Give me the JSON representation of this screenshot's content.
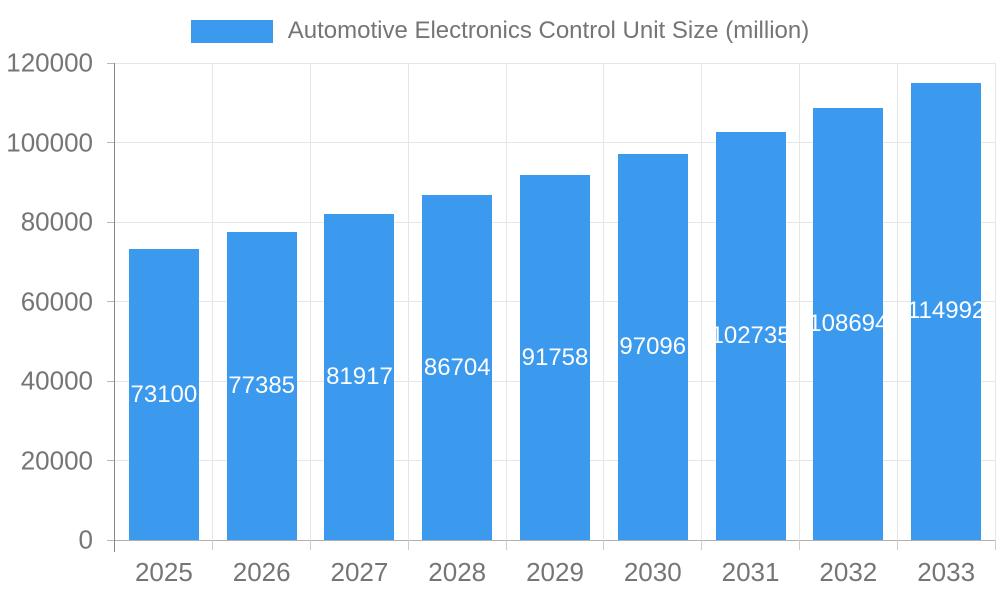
{
  "chart_data": {
    "type": "bar",
    "title": "Automotive Electronics Control Unit Size (million)",
    "categories": [
      "2025",
      "2026",
      "2027",
      "2028",
      "2029",
      "2030",
      "2031",
      "2032",
      "2033"
    ],
    "series": [
      {
        "name": "Automotive Electronics Control Unit Size (million)",
        "values": [
          73100,
          77385,
          81917,
          86704,
          91758,
          97096,
          102735,
          108694,
          114992
        ]
      }
    ],
    "value_labels": [
      "73100",
      "77385",
      "81917",
      "86704",
      "91758",
      "97096",
      "102735",
      "108694",
      "114992"
    ],
    "xlabel": "",
    "ylabel": "",
    "ylim": [
      0,
      120000
    ],
    "ytick_step": 20000,
    "ytick_labels": [
      "0",
      "20000",
      "40000",
      "60000",
      "80000",
      "100000",
      "120000"
    ],
    "grid": true,
    "legend_position": "top",
    "colors": {
      "bar": "#3B99EE",
      "value_label": "#ffffff",
      "axis_text": "#757575",
      "gridline": "#e6e6e6",
      "y_axis_line": "#888888",
      "x_axis_line": "#b0b0b0",
      "background": "#ffffff"
    }
  }
}
